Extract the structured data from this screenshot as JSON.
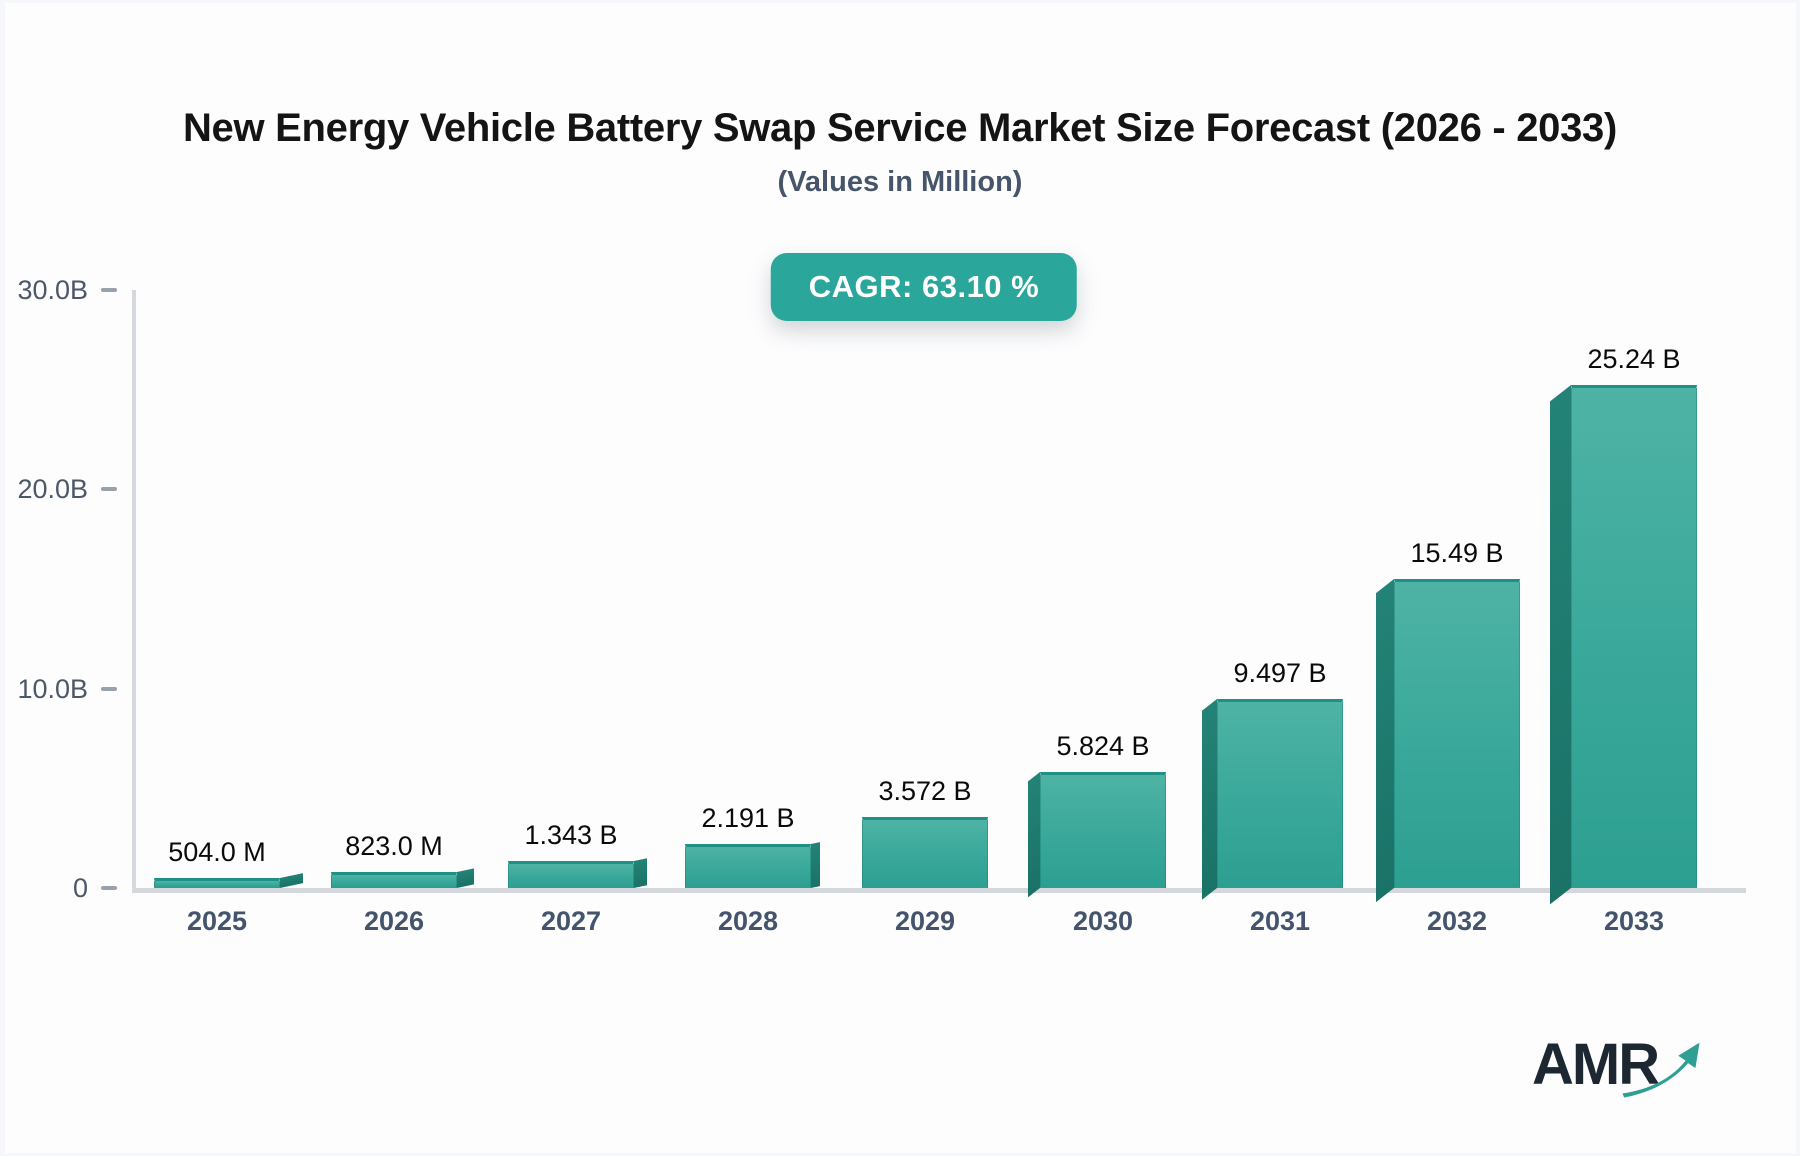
{
  "page": {
    "title": "New Energy Vehicle Battery Swap Service Market Size Forecast (2026 - 2033)",
    "subtitle": "(Values in Million)"
  },
  "badge": {
    "label": "CAGR: 63.10 %"
  },
  "chart_data": {
    "type": "bar",
    "title": "New Energy Vehicle Battery Swap Service Market Size Forecast (2026 - 2033)",
    "subtitle": "(Values in Million)",
    "cagr_percent": 63.1,
    "categories": [
      "2025",
      "2026",
      "2027",
      "2028",
      "2029",
      "2030",
      "2031",
      "2032",
      "2033"
    ],
    "values_billions": [
      0.504,
      0.823,
      1.343,
      2.191,
      3.572,
      5.824,
      9.497,
      15.49,
      25.24
    ],
    "bar_labels": [
      "504.0 M",
      "823.0 M",
      "1.343 B",
      "2.191 B",
      "3.572 B",
      "5.824 B",
      "9.497 B",
      "15.49 B",
      "25.24 B"
    ],
    "y_axis": {
      "range": [
        0,
        30
      ],
      "ticks": [
        {
          "label": "30.0B",
          "value": 30
        },
        {
          "label": "20.0B",
          "value": 20
        },
        {
          "label": "10.0B",
          "value": 10
        },
        {
          "label": "0",
          "value": 0
        }
      ]
    },
    "grid": false,
    "legend": false,
    "bar_style": "3d-extruded"
  },
  "branding": {
    "logo_text": "AMR"
  },
  "colors": {
    "badge_bg": "#2ba69b",
    "bar_face_top": "#4eb3a5",
    "bar_face_bottom": "#2d9f91",
    "bar_side": "#1e7a6f",
    "axis_line": "#d6d9de",
    "tick_label": "#4c5868",
    "year_label": "#43546c",
    "value_label": "#0a0a0a",
    "title": "#141414",
    "subtitle": "#46556a",
    "logo_text": "#1c2732",
    "logo_arrow": "#2f9e93"
  }
}
